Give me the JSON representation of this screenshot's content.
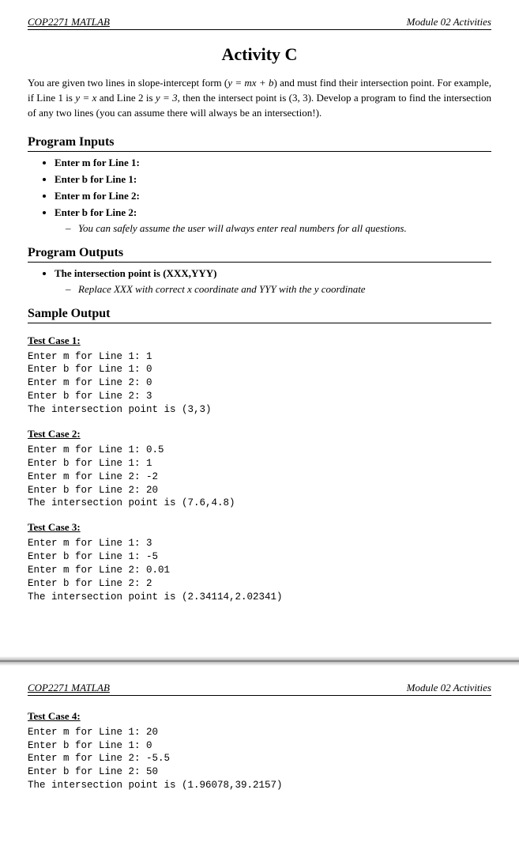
{
  "header": {
    "left": "COP2271 MATLAB",
    "right": "Module 02 Activities"
  },
  "title": "Activity C",
  "intro": {
    "p1a": "You are given two lines in slope-intercept form (",
    "eq1": "y = mx + b",
    "p1b": ") and must find their intersection point. For example, if Line 1 is ",
    "eq2": "y = x",
    "p1c": " and Line 2 is ",
    "eq3": "y = 3",
    "p1d": ", then the intersect point is (3, 3). Develop a program to find the intersection of any two lines (you can assume there will always be an intersection!)."
  },
  "sections": {
    "inputs_title": "Program Inputs",
    "outputs_title": "Program Outputs",
    "sample_title": "Sample Output"
  },
  "inputs": {
    "i1": "Enter m for Line 1:",
    "i2": "Enter b for Line 1:",
    "i3": "Enter m for Line 2:",
    "i4": "Enter b for Line 2:",
    "note": "You can safely assume the user will always enter real numbers for all questions."
  },
  "outputs": {
    "o1": "The intersection point is (XXX,YYY)",
    "note": "Replace XXX with correct x coordinate and YYY with the y coordinate"
  },
  "testcases": {
    "tc1": {
      "heading": "Test Case 1:",
      "body": "Enter m for Line 1: 1\nEnter b for Line 1: 0\nEnter m for Line 2: 0\nEnter b for Line 2: 3\nThe intersection point is (3,3)"
    },
    "tc2": {
      "heading": "Test Case 2:",
      "body": "Enter m for Line 1: 0.5\nEnter b for Line 1: 1\nEnter m for Line 2: -2\nEnter b for Line 2: 20\nThe intersection point is (7.6,4.8)"
    },
    "tc3": {
      "heading": "Test Case 3:",
      "body": "Enter m for Line 1: 3\nEnter b for Line 1: -5\nEnter m for Line 2: 0.01\nEnter b for Line 2: 2\nThe intersection point is (2.34114,2.02341)"
    },
    "tc4": {
      "heading": "Test Case 4:",
      "body": "Enter m for Line 1: 20\nEnter b for Line 1: 0\nEnter m for Line 2: -5.5\nEnter b for Line 2: 50\nThe intersection point is (1.96078,39.2157)"
    }
  }
}
